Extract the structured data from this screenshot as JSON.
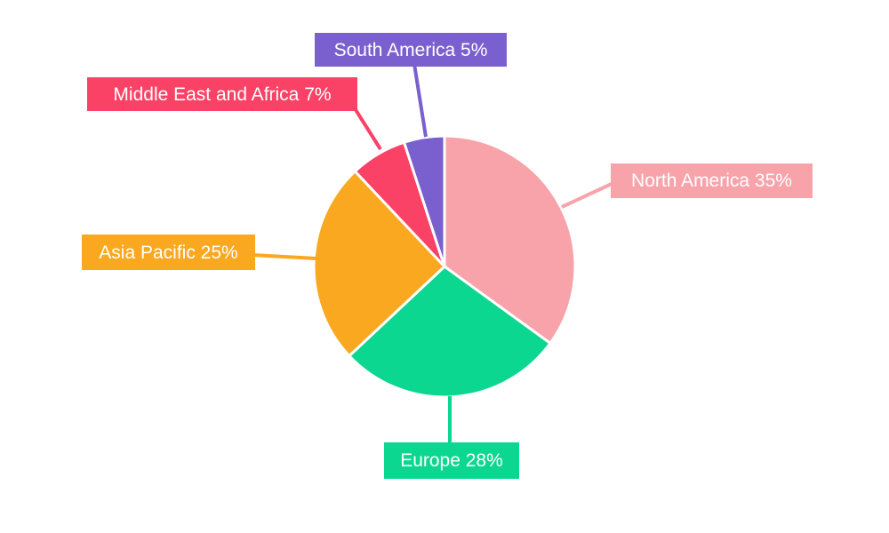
{
  "chart_data": {
    "type": "pie",
    "title": "",
    "start_angle_deg": 0,
    "direction": "clockwise",
    "slice_gap_color": "#ffffff",
    "label_style": "external colored boxes with leader lines, white text",
    "background": "#ffffff",
    "text_color": "#ffffff",
    "slices": [
      {
        "label": "North America",
        "value": 35,
        "display": "North America 35%",
        "color": "#F8A3AA"
      },
      {
        "label": "Europe",
        "value": 28,
        "display": "Europe 28%",
        "color": "#0CD790"
      },
      {
        "label": "Asia Pacific",
        "value": 25,
        "display": "Asia Pacific 25%",
        "color": "#FAA820"
      },
      {
        "label": "Middle East and Africa",
        "value": 7,
        "display": "Middle East and Africa 7%",
        "color": "#FA4266"
      },
      {
        "label": "South America",
        "value": 5,
        "display": "South America 5%",
        "color": "#7A5FCF"
      }
    ]
  }
}
